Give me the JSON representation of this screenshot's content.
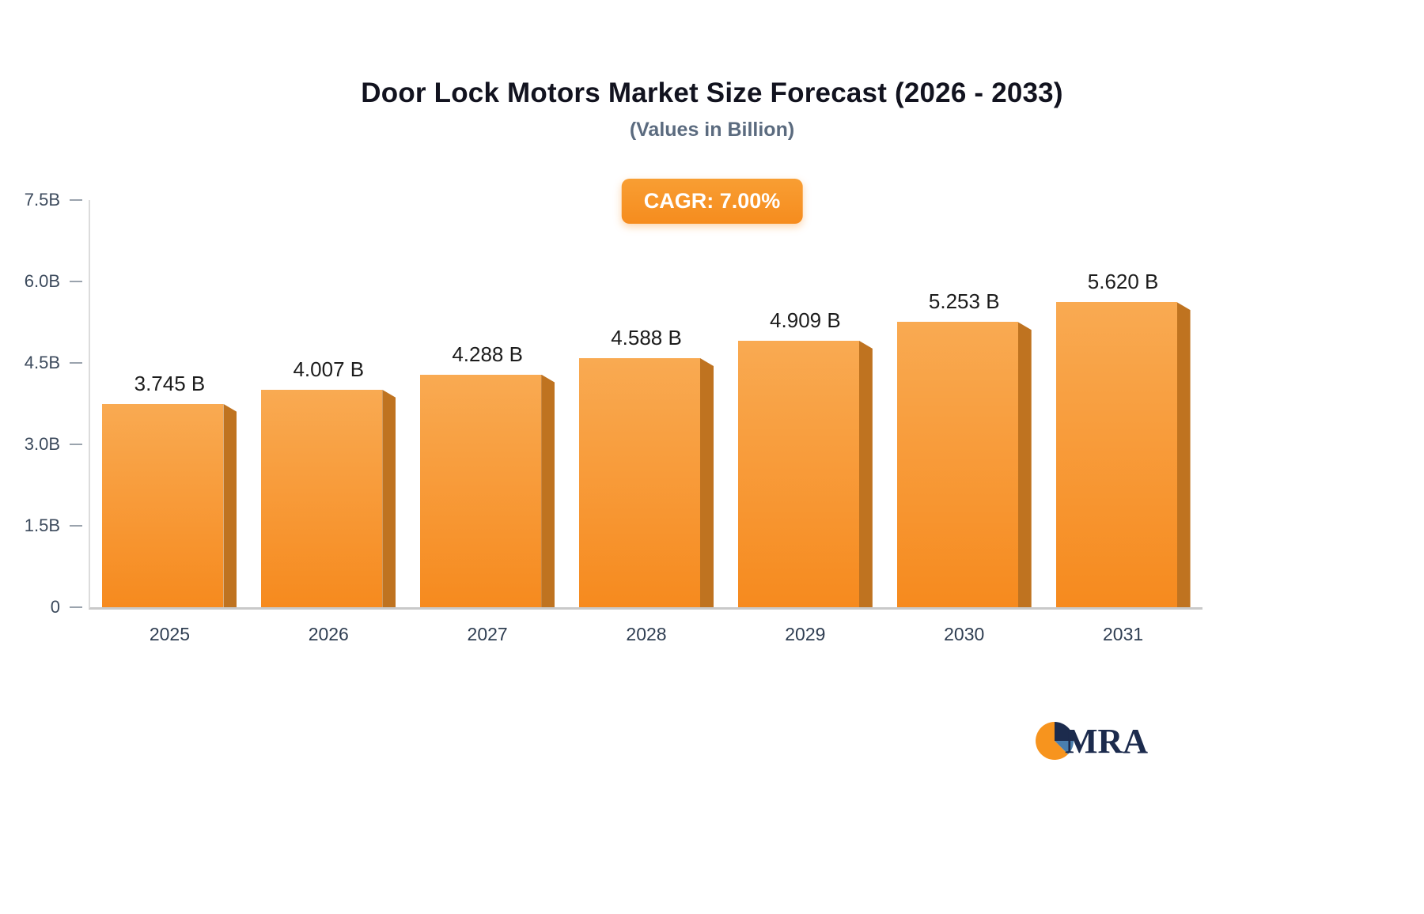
{
  "header": {
    "title": "Door Lock Motors Market Size Forecast (2026 - 2033)",
    "subtitle": "(Values in Billion)"
  },
  "badge": {
    "label": "CAGR: 7.00%",
    "bg": "#f68c1e",
    "text_color": "#ffffff"
  },
  "chart_data": {
    "type": "bar",
    "title": "Door Lock Motors Market Size Forecast (2026 - 2033)",
    "subtitle": "(Values in Billion)",
    "categories": [
      "2025",
      "2026",
      "2027",
      "2028",
      "2029",
      "2030",
      "2031"
    ],
    "values": [
      3.745,
      4.007,
      4.288,
      4.588,
      4.909,
      5.253,
      5.62
    ],
    "value_labels": [
      "3.745 B",
      "4.007 B",
      "4.288 B",
      "4.588 B",
      "4.909 B",
      "5.253 B",
      "5.620 B"
    ],
    "xlabel": "",
    "ylabel": "",
    "ylim": [
      0,
      7.5
    ],
    "yticks": [
      0,
      1.5,
      3.0,
      4.5,
      6.0,
      7.5
    ],
    "ytick_labels": [
      "0",
      "1.5B",
      "3.0B",
      "4.5B",
      "6.0B",
      "7.5B"
    ],
    "grid": false,
    "legend": false,
    "colors": {
      "bar_face_top": "#f9aa52",
      "bar_face_bottom": "#f68a1e",
      "bar_side": "#bf7320",
      "axis_line": "#c9c9c9",
      "tick_text": "#3c4a5c",
      "value_text": "#1c1c1c",
      "x_text": "#2f3e52"
    }
  },
  "logo": {
    "text": "MRA",
    "navy": "#1c2b4d",
    "orange": "#f7941e",
    "steel": "#4a7fae"
  }
}
